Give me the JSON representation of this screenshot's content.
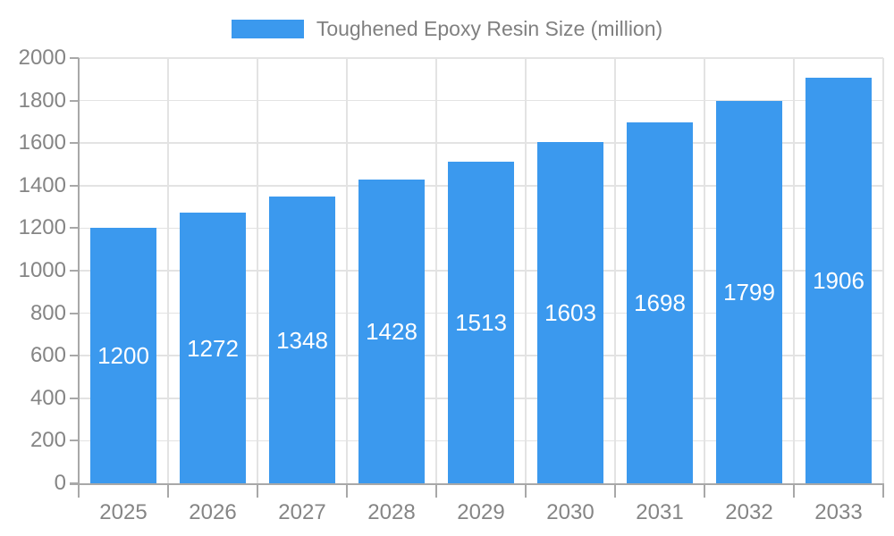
{
  "chart_data": {
    "type": "bar",
    "title": "Toughened Epoxy Resin Size (million)",
    "legend": "Toughened Epoxy Resin Size (million)",
    "legend_position": "top-center",
    "categories": [
      "2025",
      "2026",
      "2027",
      "2028",
      "2029",
      "2030",
      "2031",
      "2032",
      "2033"
    ],
    "values": [
      1200,
      1272,
      1348,
      1428,
      1513,
      1603,
      1698,
      1799,
      1906
    ],
    "value_labels_inside_bars": true,
    "xlabel": "",
    "ylabel": "",
    "ylim": [
      0,
      2000
    ],
    "yticks": [
      0,
      200,
      400,
      600,
      800,
      1000,
      1200,
      1400,
      1600,
      1800,
      2000
    ],
    "grid": true,
    "bar_color": "#3b99ee",
    "value_label_color": "#ffffff",
    "axis_label_color": "#858585",
    "legend_text_color": "#808080",
    "grid_color": "#e3e3e3",
    "axis_line_color": "#a8a8a8"
  }
}
